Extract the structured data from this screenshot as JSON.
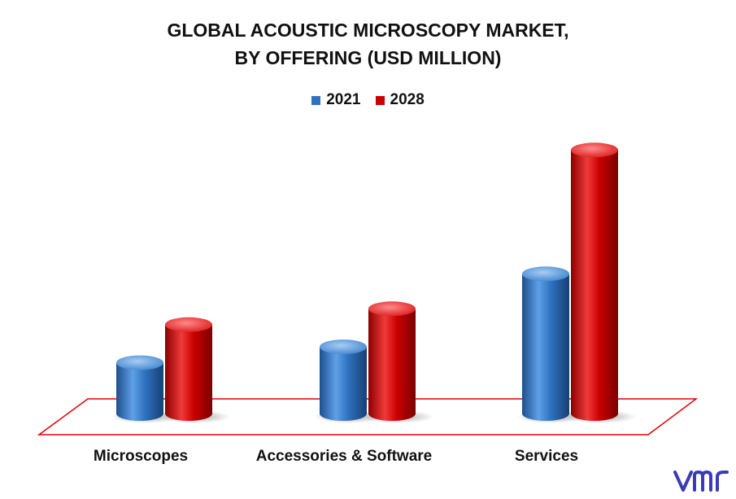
{
  "title_line1": "GLOBAL ACOUSTIC MICROSCOPY MARKET,",
  "title_line2": "BY OFFERING (USD MILLION)",
  "chart_data": {
    "type": "bar",
    "title": "GLOBAL ACOUSTIC MICROSCOPY MARKET, BY OFFERING (USD MILLION)",
    "categories": [
      "Microscopes",
      "Accessories & Software",
      "Services"
    ],
    "series": [
      {
        "name": "2021",
        "values": [
          16,
          21,
          44
        ]
      },
      {
        "name": "2028",
        "values": [
          28,
          33,
          83
        ]
      }
    ],
    "colors": [
      "#2f73c0",
      "#cc0000"
    ],
    "ylim": [
      0,
      100
    ],
    "legend": "top",
    "grid": false,
    "style": "3d-cylinder"
  },
  "logo_text": "vmr",
  "colors": {
    "floor_outline": "#e00000",
    "logo": "#3b3bb8"
  }
}
